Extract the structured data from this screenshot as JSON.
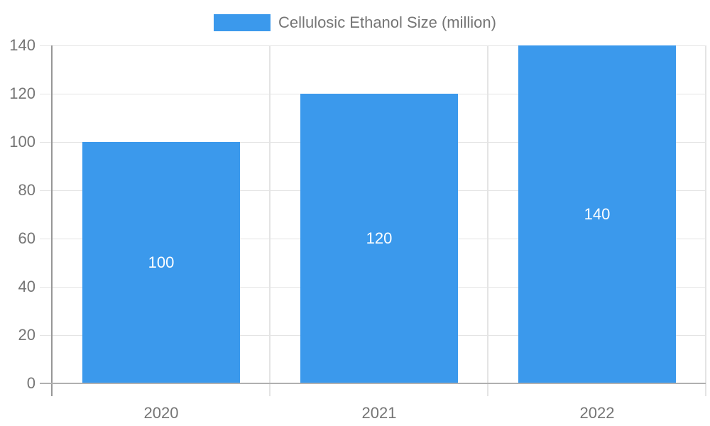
{
  "legend": {
    "label": "Cellulosic Ethanol Size (million)"
  },
  "colors": {
    "background": "#FFFFFF",
    "bar": "#3B99EC",
    "grid_light": "#E4E4E4",
    "baseline": "#B0B0B0",
    "axis_line": "#979797",
    "tick_label": "#757575",
    "bar_label": "#FFFFFF"
  },
  "chart_data": {
    "type": "bar",
    "title": "Cellulosic Ethanol Size (million)",
    "categories": [
      "2020",
      "2021",
      "2022"
    ],
    "series": [
      {
        "name": "Cellulosic Ethanol Size (million)",
        "values": [
          100,
          120,
          140
        ]
      }
    ],
    "values": [
      100,
      120,
      140
    ],
    "bar_labels": [
      "100",
      "120",
      "140"
    ],
    "xlabel": "",
    "ylabel": "",
    "ylim": [
      0,
      140
    ],
    "yticks": [
      0,
      20,
      40,
      60,
      80,
      100,
      120,
      140
    ],
    "grid": true,
    "legend_position": "top"
  }
}
